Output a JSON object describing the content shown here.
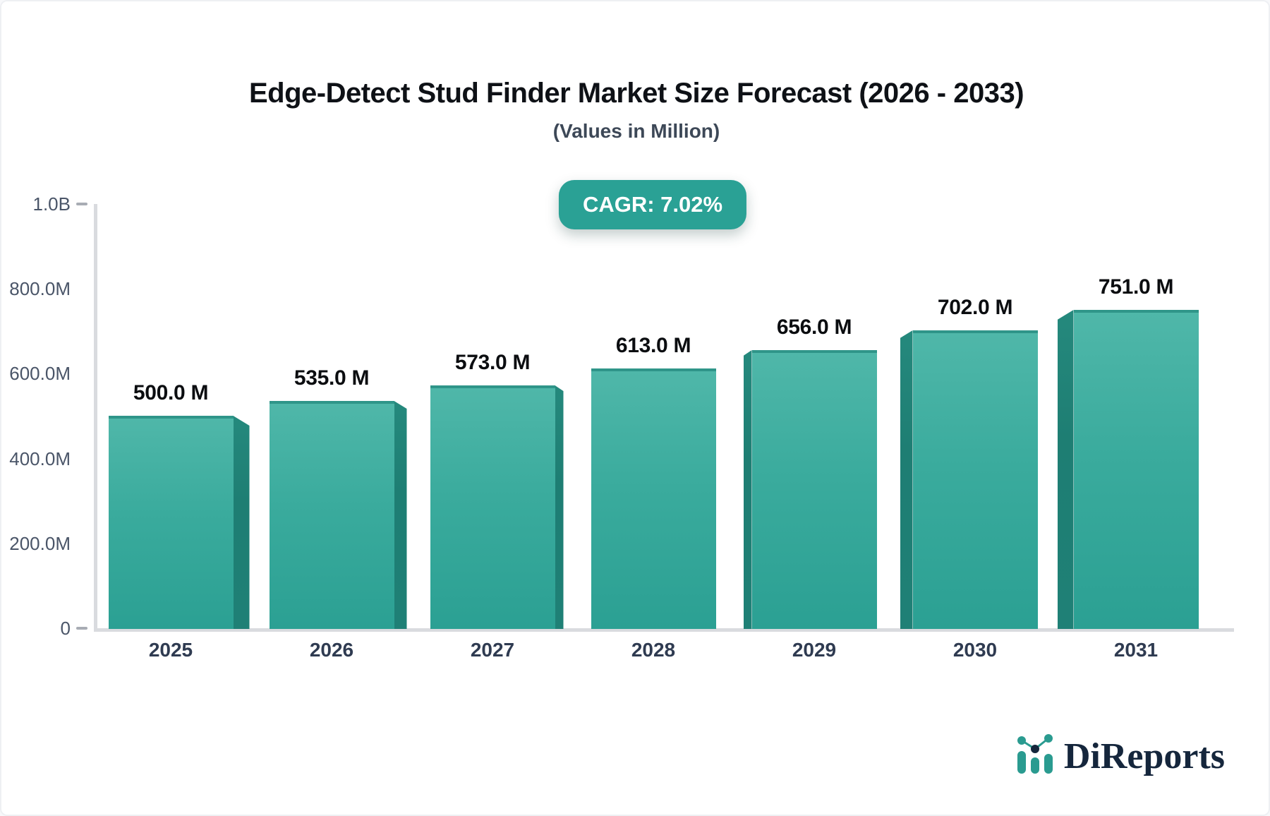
{
  "header": {
    "title": "Edge-Detect Stud Finder Market Size Forecast (2026 - 2033)",
    "subtitle": "(Values in Million)",
    "cagr_badge": "CAGR: 7.02%"
  },
  "colors": {
    "badge_bg": "#2aa195",
    "bar_main": "#35ac9e",
    "bar_side": "#1e7e73",
    "axis": "#d9dbdf",
    "logo_navy": "#15263c",
    "logo_teal": "#2a9b90"
  },
  "chart_data": {
    "type": "bar",
    "title": "Edge-Detect Stud Finder Market Size Forecast (2026 - 2033)",
    "subtitle": "(Values in Million)",
    "categories": [
      "2025",
      "2026",
      "2027",
      "2028",
      "2029",
      "2030",
      "2031"
    ],
    "values": [
      500,
      535,
      573,
      613,
      656,
      702,
      751
    ],
    "value_labels": [
      "500.0 M",
      "535.0 M",
      "573.0 M",
      "613.0 M",
      "656.0 M",
      "702.0 M",
      "751.0 M"
    ],
    "ylabel": "",
    "xlabel": "",
    "ylim": [
      0,
      1000
    ],
    "y_ticks": {
      "labels": [
        "1.0B",
        "800.0M",
        "600.0M",
        "400.0M",
        "200.0M",
        "0"
      ],
      "values": [
        1000,
        800,
        600,
        400,
        200,
        0
      ]
    },
    "grid": false,
    "legend": false,
    "style": "3d-perspective-bars, teal gradient, value labels above bars"
  },
  "logo": {
    "text": "DiReports"
  }
}
